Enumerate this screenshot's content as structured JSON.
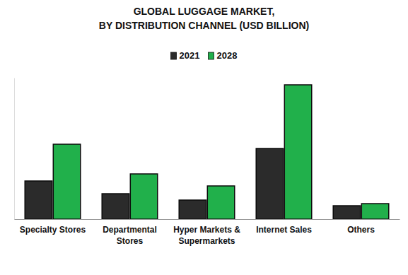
{
  "chart_data": {
    "type": "bar",
    "title": "GLOBAL LUGGAGE MARKET, BY DISTRIBUTION CHANNEL (USD BILLION)",
    "categories": [
      "Specialty Stores",
      "Departmental Stores",
      "Hyper Markets & Supermarkets",
      "Internet Sales",
      "Others"
    ],
    "series": [
      {
        "name": "2021",
        "color": "#2b2b2b",
        "values": [
          5.4,
          3.6,
          2.7,
          10.0,
          1.9
        ]
      },
      {
        "name": "2028",
        "color": "#21b04b",
        "values": [
          10.6,
          6.4,
          4.7,
          19.0,
          2.2
        ]
      }
    ],
    "ylim": [
      0,
      20
    ],
    "legend": "top",
    "tick_labels": "x",
    "grid": false
  }
}
